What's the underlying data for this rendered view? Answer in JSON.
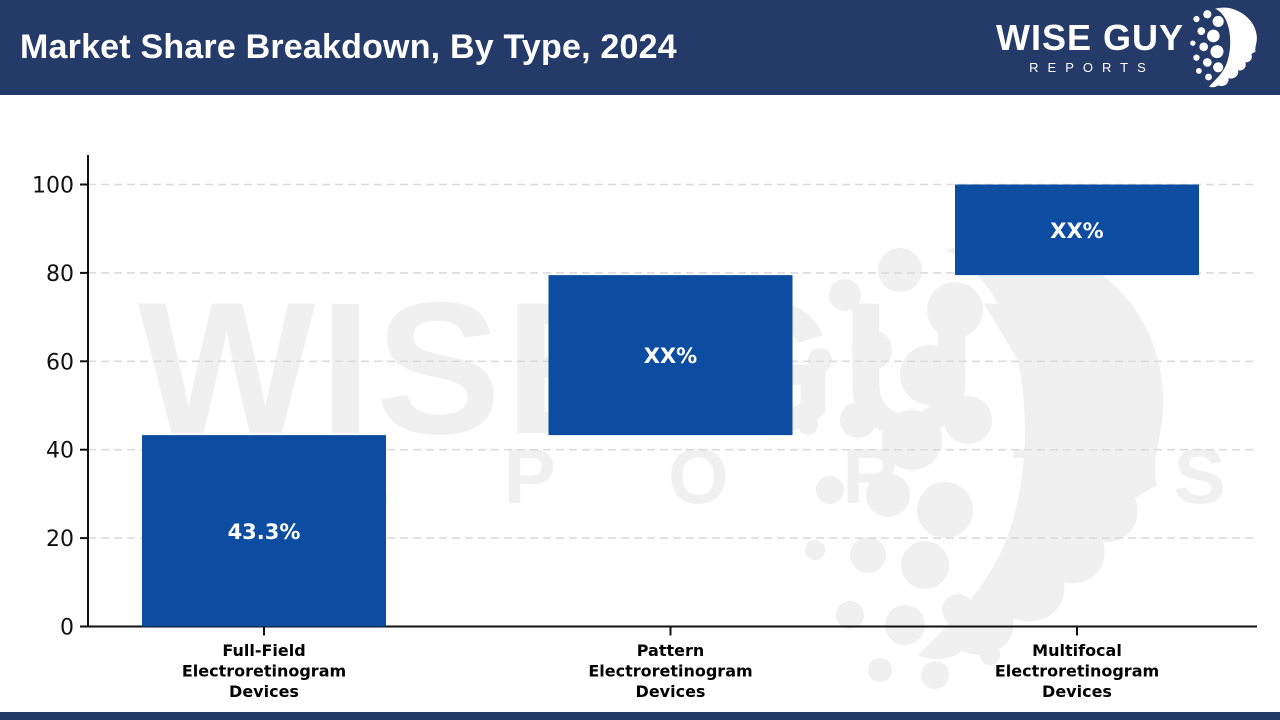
{
  "header": {
    "title": "Market Share Breakdown, By Type, 2024",
    "logo": {
      "line1": "WISE GUY",
      "line2": "REPORTS"
    }
  },
  "watermark": {
    "line1": "WISE GUY",
    "line2": "R E P O R T S"
  },
  "chart_data": {
    "type": "bar",
    "subtype": "stacked-waterfall",
    "title": "Market Share Breakdown, By Type, 2024",
    "categories": [
      "Full-Field Electroretinogram Devices",
      "Pattern Electroretinogram Devices",
      "Multifocal Electroretinogram Devices"
    ],
    "category_lines": [
      [
        "Full-Field",
        "Electroretinogram",
        "Devices"
      ],
      [
        "Pattern",
        "Electroretinogram",
        "Devices"
      ],
      [
        "Multifocal",
        "Electroretinogram",
        "Devices"
      ]
    ],
    "segments": [
      {
        "start": 0,
        "end": 43.3,
        "value_label": "43.3%"
      },
      {
        "start": 43.3,
        "end": 79.5,
        "value_label": "XX%"
      },
      {
        "start": 79.5,
        "end": 100,
        "value_label": "XX%"
      }
    ],
    "xlabel": "",
    "ylabel": "",
    "ylim": [
      0,
      100
    ],
    "yticks": [
      0,
      20,
      40,
      60,
      80,
      100
    ],
    "grid": "horizontal-dashed",
    "legend": "none",
    "bar_color": "#0C4DA2",
    "bar_label_color": "#ffffff"
  },
  "colors": {
    "header_bg": "#243A68",
    "footer_bg": "#243A68",
    "bar": "#0C4DA2",
    "grid": "#dcdcdc",
    "axis": "#111111",
    "watermark": "#f0f0f0",
    "frame_border": "#d9d9d9"
  }
}
